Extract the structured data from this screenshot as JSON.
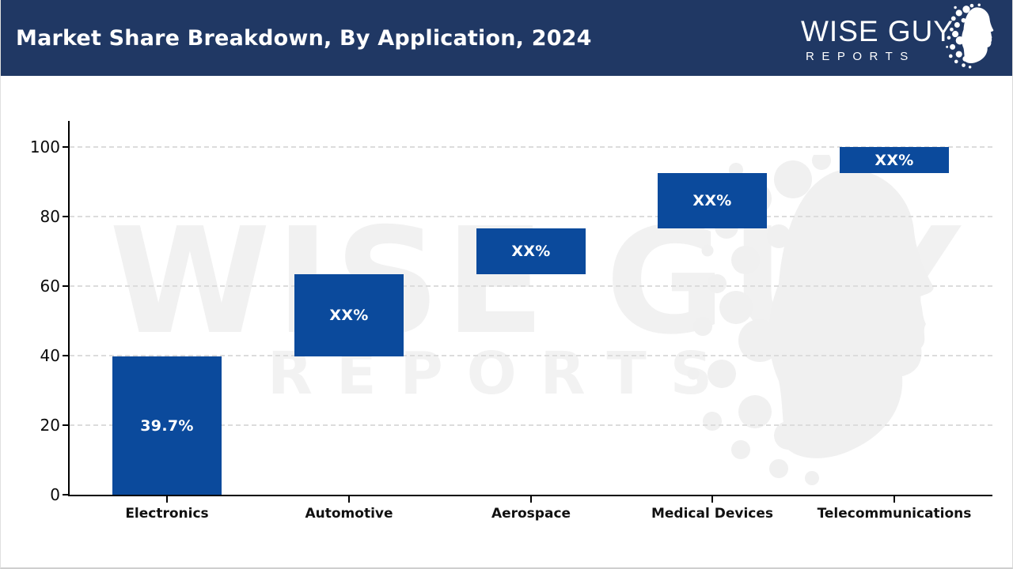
{
  "header": {
    "title": "Market Share Breakdown, By Application, 2024",
    "bg_color": "#203864",
    "logo": {
      "line1": "WISE GUY",
      "line2": "REPORTS"
    }
  },
  "watermark": {
    "line1": "WISE GUY",
    "line2": "REPORTS"
  },
  "chart_data": {
    "type": "bar",
    "subtype": "waterfall",
    "title": "Market Share Breakdown, By Application, 2024",
    "categories": [
      "Electronics",
      "Automotive",
      "Aerospace",
      "Medical Devices",
      "Telecommunications"
    ],
    "segments": [
      {
        "category": "Electronics",
        "start": 0,
        "end": 39.7,
        "label": "39.7%"
      },
      {
        "category": "Automotive",
        "start": 39.7,
        "end": 63.4,
        "label": "XX%"
      },
      {
        "category": "Aerospace",
        "start": 63.4,
        "end": 76.6,
        "label": "XX%"
      },
      {
        "category": "Medical Devices",
        "start": 76.6,
        "end": 92.5,
        "label": "XX%"
      },
      {
        "category": "Telecommunications",
        "start": 92.5,
        "end": 100,
        "label": "XX%"
      }
    ],
    "xlabel": "",
    "ylabel": "",
    "ylim": [
      0,
      100
    ],
    "yticks": [
      0,
      20,
      40,
      60,
      80,
      100
    ],
    "grid": "horizontal-dashed",
    "legend": "none",
    "bar_color": "#0b4a9c",
    "bar_label_color": "#ffffff",
    "axis_color": "#000000",
    "gridline_color": "#dcdcdc"
  }
}
